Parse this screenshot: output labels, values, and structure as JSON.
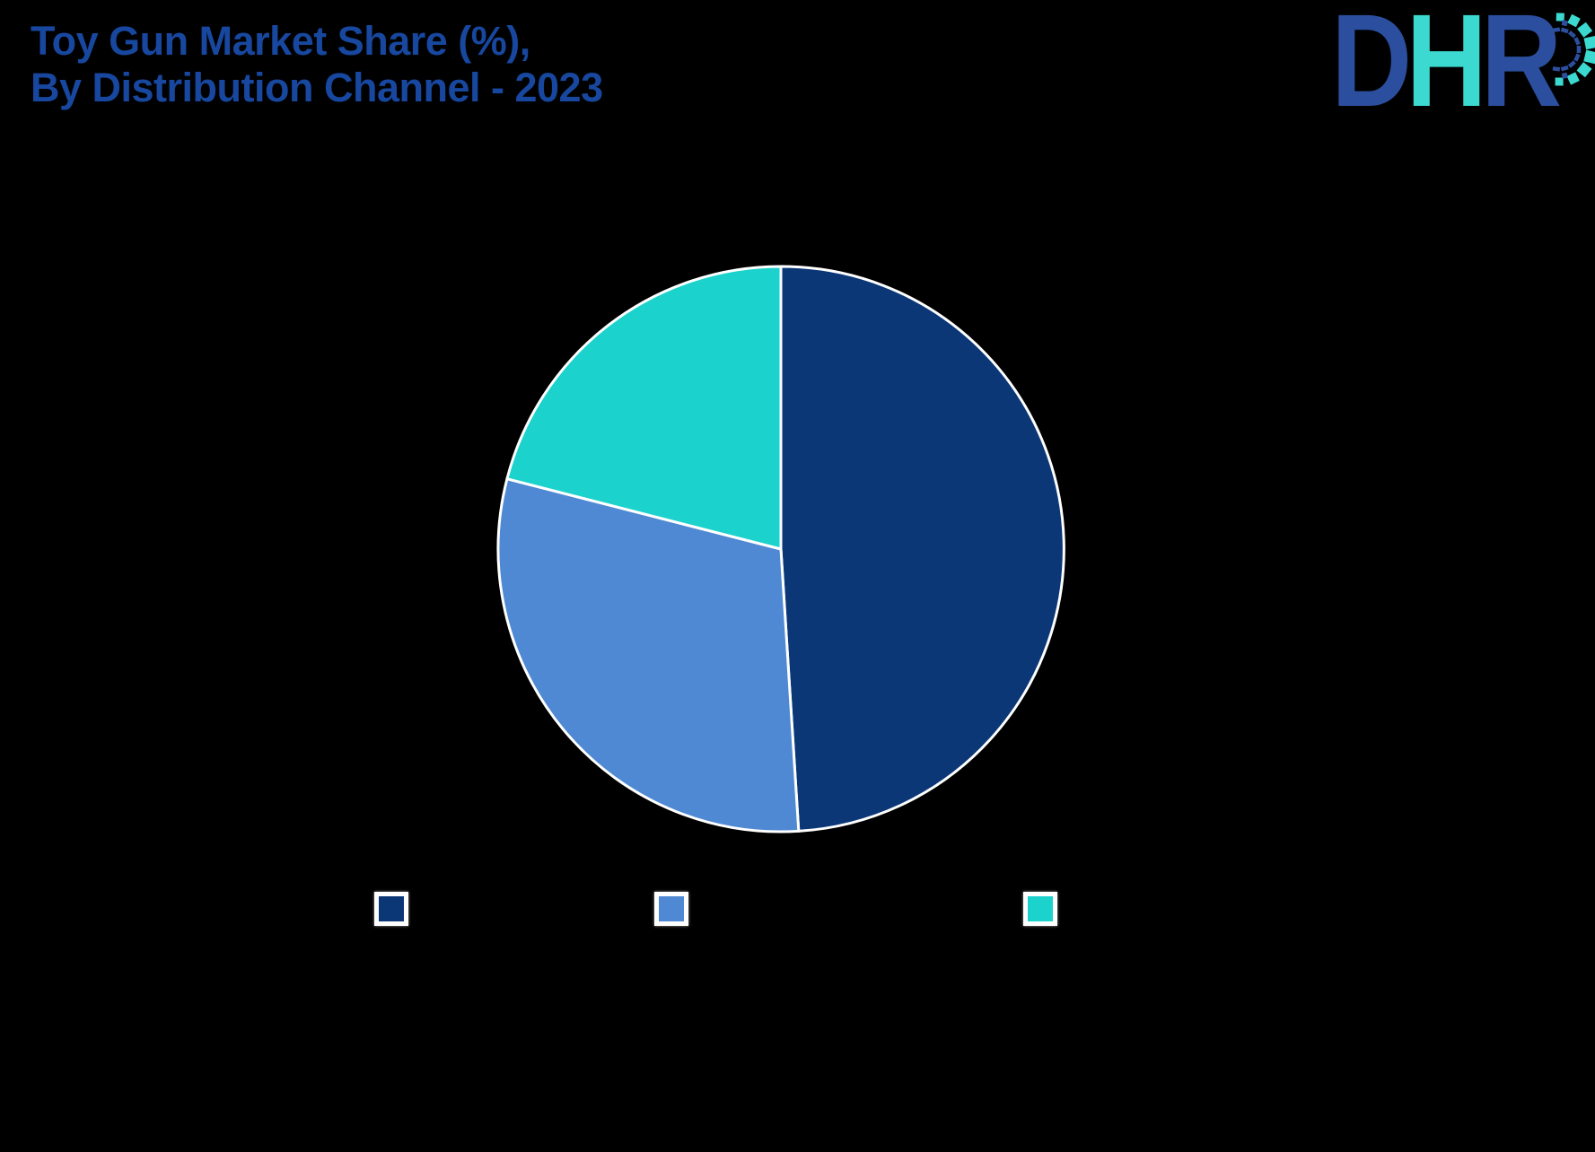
{
  "title": {
    "line1": "Toy Gun Market Share (%),",
    "line2": "By Distribution Channel - 2023"
  },
  "colors": {
    "background": "#000000",
    "title": "#17479E",
    "pie_border": "#FFFFFF",
    "legend_swatch_border": "#FFFFFF"
  },
  "logo": {
    "letters": [
      {
        "char": "D",
        "color": "#2B4F9E"
      },
      {
        "char": "H",
        "color": "#3CD9D0"
      },
      {
        "char": "R",
        "color": "#2B4F9E"
      }
    ],
    "blue": "#2B4F9E",
    "teal": "#3CD9D0",
    "icon": "pixel-arc-icon"
  },
  "chart_data": {
    "type": "pie",
    "title": "Toy Gun Market Share (%), By Distribution Channel - 2023",
    "year": "2023",
    "direction": "clockwise",
    "start_angle_deg": 0,
    "slices": [
      {
        "label": "",
        "value": 49,
        "color": "#0B3777"
      },
      {
        "label": "",
        "value": 30,
        "color": "#4F89D3"
      },
      {
        "label": "",
        "value": 21,
        "color": "#1CD2CC"
      }
    ],
    "legend_position": "bottom",
    "legend_labels_visible": false
  }
}
